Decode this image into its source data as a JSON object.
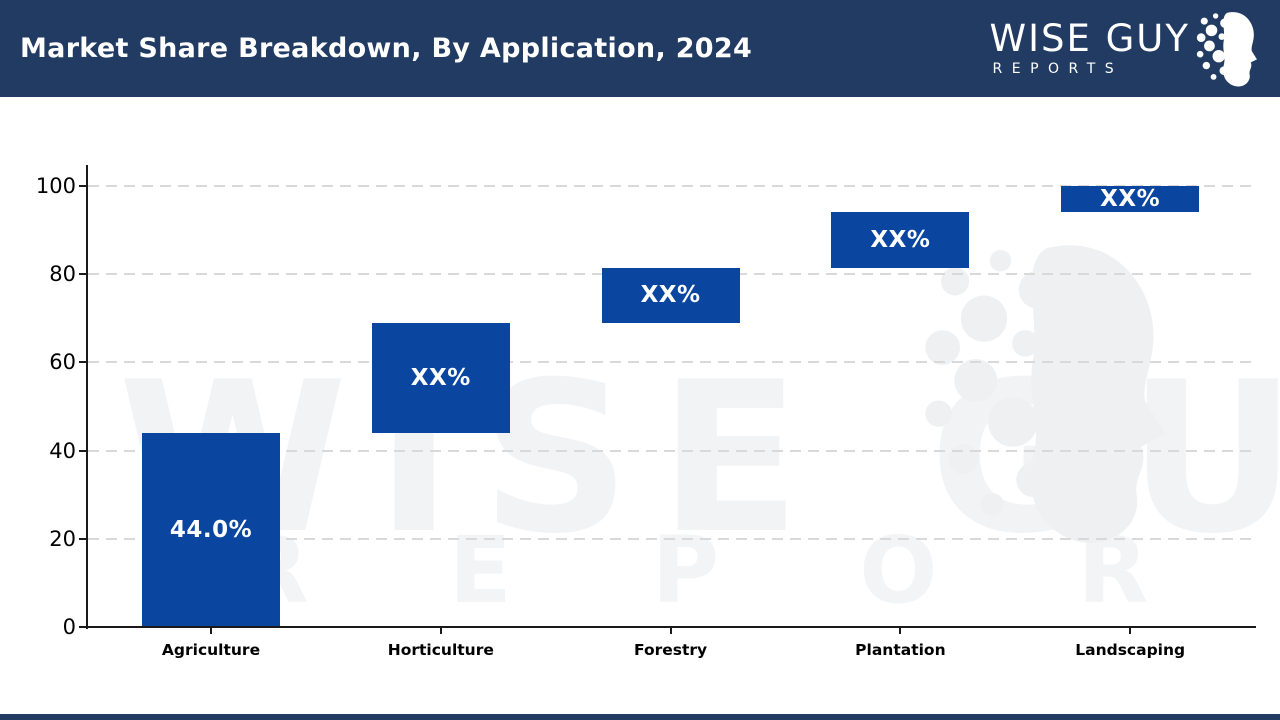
{
  "header": {
    "title": "Market Share Breakdown, By Application, 2024",
    "logo": {
      "line1": "WISE GUY",
      "line2": "REPORTS"
    }
  },
  "watermark": {
    "line1": "WISE GUY",
    "line2": "R E P O R T S"
  },
  "chart_data": {
    "type": "bar",
    "subtype": "waterfall",
    "title": "Market Share Breakdown, By Application, 2024",
    "categories": [
      "Agriculture",
      "Horticulture",
      "Forestry",
      "Plantation",
      "Landscaping"
    ],
    "segments": [
      {
        "category": "Agriculture",
        "start": 0,
        "end": 44,
        "label": "44.0%"
      },
      {
        "category": "Horticulture",
        "start": 44,
        "end": 69,
        "label": "XX%"
      },
      {
        "category": "Forestry",
        "start": 69,
        "end": 81.5,
        "label": "XX%"
      },
      {
        "category": "Plantation",
        "start": 81.5,
        "end": 94,
        "label": "XX%"
      },
      {
        "category": "Landscaping",
        "start": 94,
        "end": 100,
        "label": "XX%"
      }
    ],
    "yticks": [
      0,
      20,
      40,
      60,
      80,
      100
    ],
    "ylim": [
      0,
      105
    ],
    "xlabel": "",
    "ylabel": "",
    "grid": "horizontal-dashed",
    "legend": "none",
    "bar_color": "#0a46a0",
    "bar_label_color": "#ffffff"
  },
  "colors": {
    "header_bg": "#213b63",
    "footer_bg": "#213b63",
    "bar_blue": "#0a46a0",
    "axis": "#1a1a1a",
    "gridline": "#d9d9d9",
    "watermark": "#eef0f2",
    "title_text": "#ffffff"
  }
}
